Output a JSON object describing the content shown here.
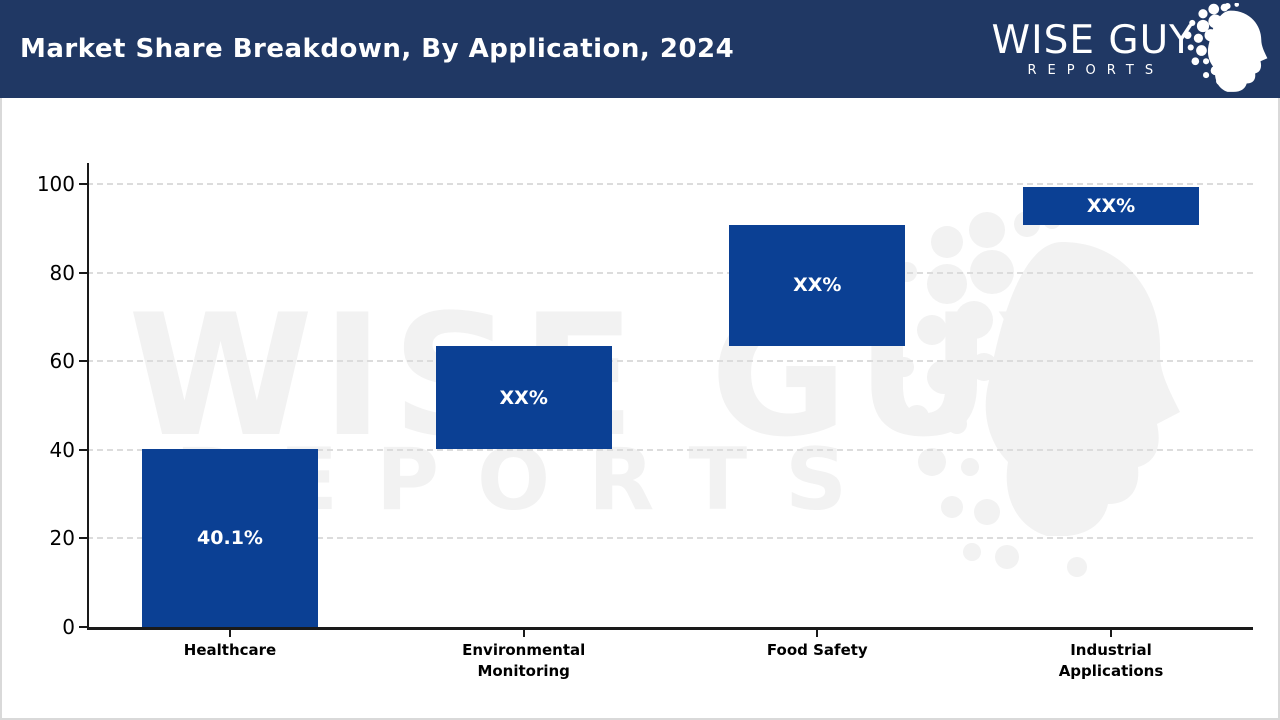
{
  "header": {
    "title": "Market Share Breakdown, By Application, 2024",
    "bg_color": "#203864",
    "logo": {
      "line1": "WISE GUY",
      "line2": "REPORTS"
    }
  },
  "watermark": {
    "line1": "WISE GUY.",
    "line2": "REPORTS"
  },
  "chart_data": {
    "type": "bar",
    "subtype": "waterfall",
    "title": "Market Share Breakdown, By Application, 2024",
    "categories": [
      "Healthcare",
      "Environmental Monitoring",
      "Food Safety",
      "Industrial Applications"
    ],
    "bars": [
      {
        "label": "Healthcare",
        "label_lines": [
          "Healthcare"
        ],
        "start": 0,
        "end": 40.1,
        "value_label": "40.1%"
      },
      {
        "label": "Environmental Monitoring",
        "label_lines": [
          "Environmental",
          "Monitoring"
        ],
        "start": 40.1,
        "end": 63.5,
        "value_label": "XX%"
      },
      {
        "label": "Food Safety",
        "label_lines": [
          "Food Safety"
        ],
        "start": 63.5,
        "end": 90.7,
        "value_label": "XX%"
      },
      {
        "label": "Industrial Applications",
        "label_lines": [
          "Industrial",
          "Applications"
        ],
        "start": 90.7,
        "end": 99.4,
        "value_label": "XX%"
      }
    ],
    "y_ticks": [
      0,
      20,
      40,
      60,
      80,
      100
    ],
    "ylim": [
      0,
      105
    ],
    "xlabel": "",
    "ylabel": "",
    "bar_color": "#0b4094",
    "grid": "horizontal-dashed",
    "legend": "none"
  }
}
